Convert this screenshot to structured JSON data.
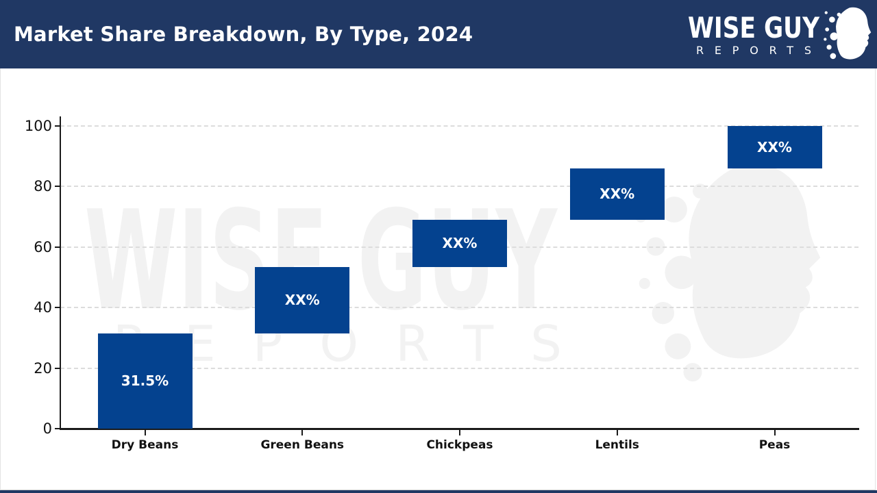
{
  "header": {
    "title": "Market Share Breakdown, By Type, 2024",
    "logo": {
      "line1": "WISE GUY",
      "line2": "REPORTS"
    }
  },
  "watermark": {
    "line1": "WISE GUY",
    "line2": "REPORTS"
  },
  "colors": {
    "header_bg": "#203864",
    "bar": "#04428f",
    "grid": "#dcdcdc",
    "axis": "#1a1a1a",
    "bar_label": "#ffffff",
    "watermark": "#f2f2f2"
  },
  "chart_data": {
    "type": "bar",
    "subtype": "waterfall",
    "title": "Market Share Breakdown, By Type, 2024",
    "xlabel": "",
    "ylabel": "",
    "categories": [
      "Dry Beans",
      "Green Beans",
      "Chickpeas",
      "Lentils",
      "Peas"
    ],
    "segments": [
      {
        "category": "Dry Beans",
        "start": 0,
        "end": 31.5,
        "label": "31.5%"
      },
      {
        "category": "Green Beans",
        "start": 31.5,
        "end": 53.5,
        "label": "XX%"
      },
      {
        "category": "Chickpeas",
        "start": 53.5,
        "end": 69,
        "label": "XX%"
      },
      {
        "category": "Lentils",
        "start": 69,
        "end": 86,
        "label": "XX%"
      },
      {
        "category": "Peas",
        "start": 86,
        "end": 100,
        "label": "XX%"
      }
    ],
    "yticks": [
      0,
      20,
      40,
      60,
      80,
      100
    ],
    "ylim": [
      0,
      103
    ],
    "grid": "horizontal-dashed",
    "legend": null
  }
}
